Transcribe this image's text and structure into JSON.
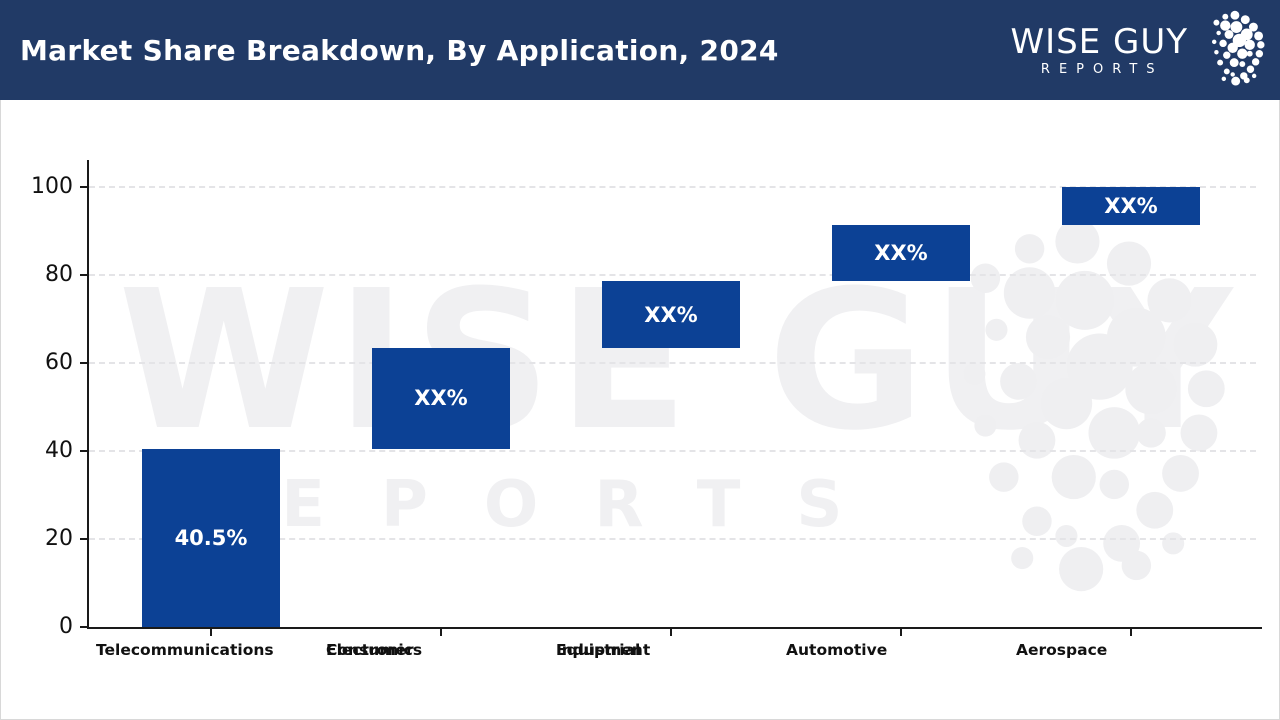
{
  "header": {
    "title": "Market Share Breakdown, By Application, 2024",
    "logo": {
      "wordmark": "WISE GUY",
      "subtitle": "REPORTS"
    }
  },
  "watermark": {
    "line1": "WISE GUY",
    "line2": "REPORTS"
  },
  "colors": {
    "header_bg": "#213A66",
    "bar": "#0C4195",
    "bar_label": "#FFFFFF",
    "grid": "#E4E4E7",
    "axis": "#1A1A1A"
  },
  "chart_data": {
    "type": "bar",
    "subtype": "floating cumulative (waterfall-style) percentage bars ending at 100%",
    "title": "Market Share Breakdown, By Application, 2024",
    "xlabel": "",
    "ylabel": "",
    "ylim": [
      0,
      105
    ],
    "yticks": [
      0,
      20,
      40,
      60,
      80,
      100
    ],
    "grid": "horizontal dashed",
    "legend": "none",
    "categories": [
      "Telecommunications",
      "Consumer Electronics",
      "Industrial Equipment",
      "Automotive",
      "Aerospace"
    ],
    "segments": [
      {
        "category": "Telecommunications",
        "lines": [
          "Telecommunications"
        ],
        "start": 0,
        "end": 40.5,
        "label": "40.5%"
      },
      {
        "category": "Consumer Electronics",
        "lines": [
          "Consumer",
          "Electronics"
        ],
        "start": 40.5,
        "end": 63.4,
        "label": "XX%"
      },
      {
        "category": "Industrial Equipment",
        "lines": [
          "Industrial",
          "Equipment"
        ],
        "start": 63.4,
        "end": 78.6,
        "label": "XX%"
      },
      {
        "category": "Automotive",
        "lines": [
          "Automotive"
        ],
        "start": 78.6,
        "end": 91.4,
        "label": "XX%"
      },
      {
        "category": "Aerospace",
        "lines": [
          "Aerospace"
        ],
        "start": 91.4,
        "end": 100,
        "label": "XX%"
      }
    ]
  }
}
